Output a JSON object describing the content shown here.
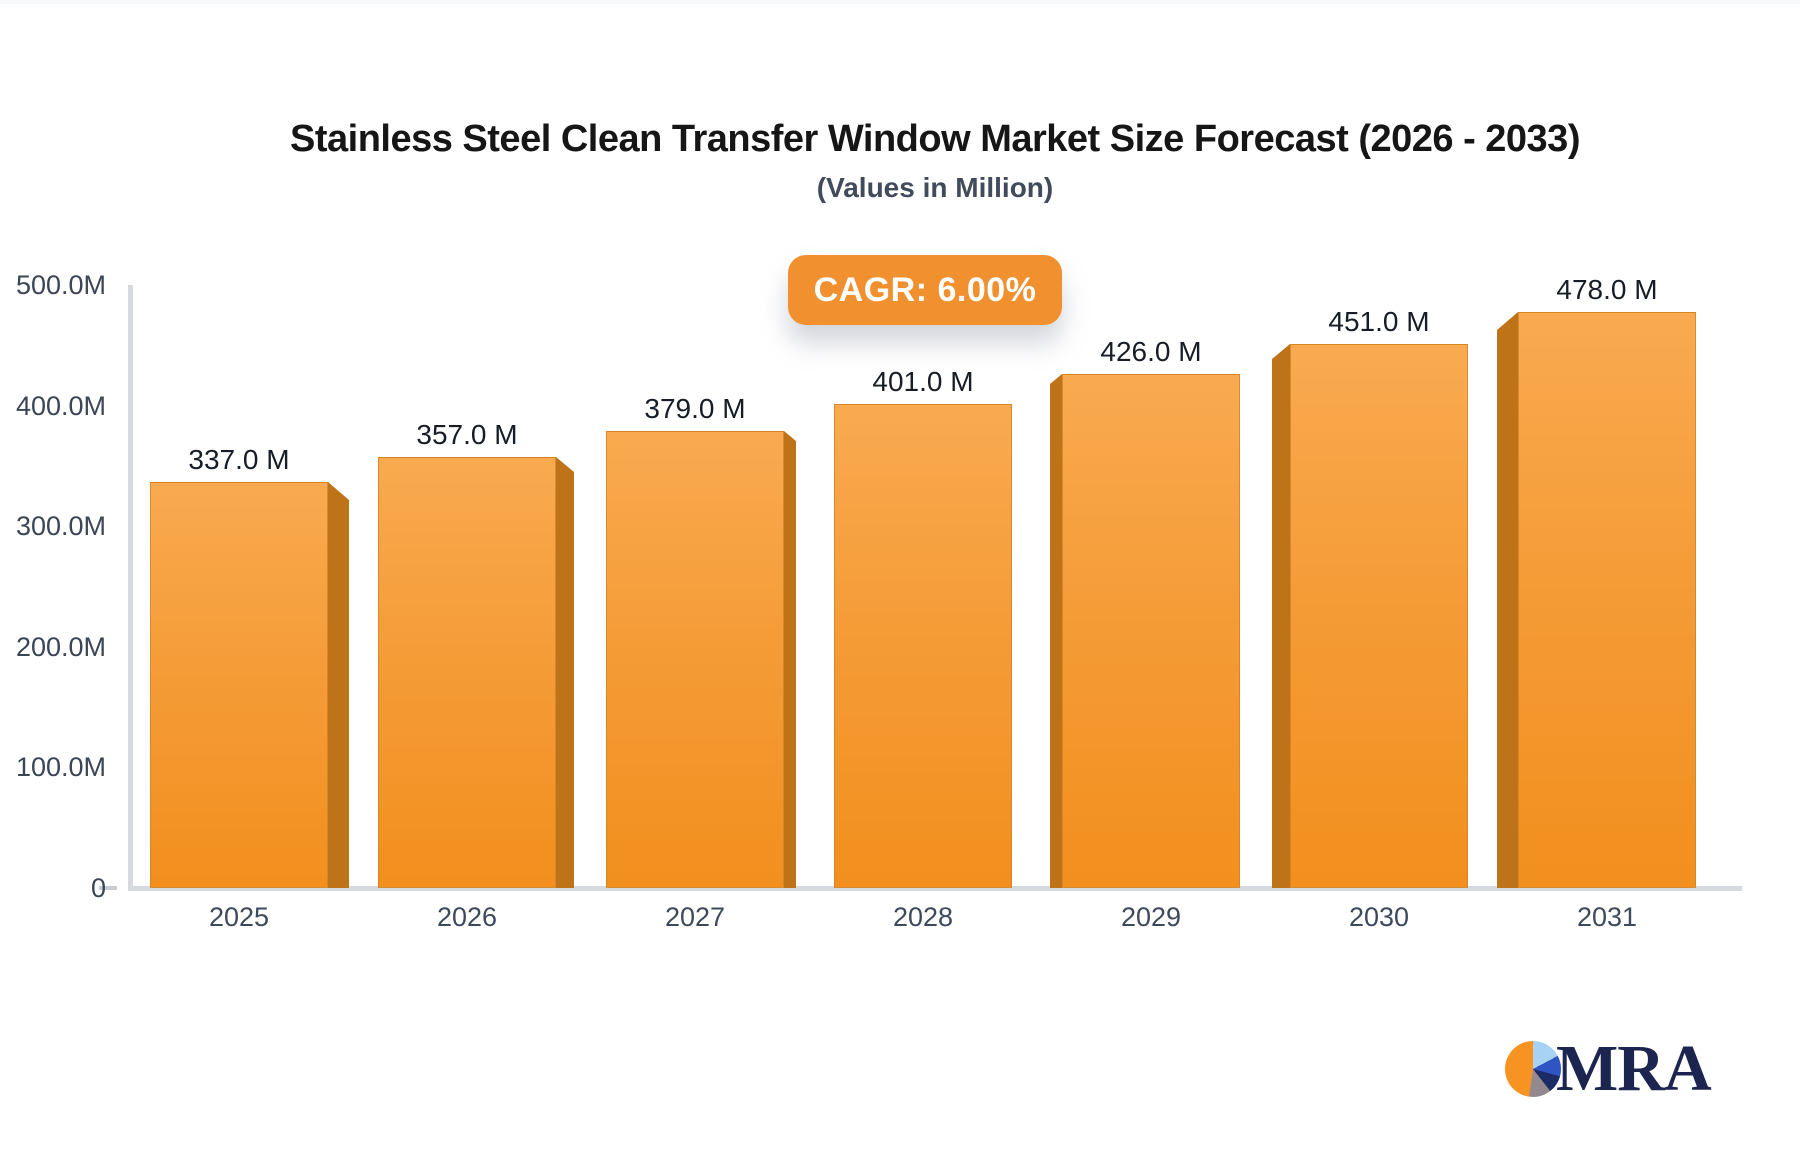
{
  "chart_data": {
    "type": "bar",
    "title": "Stainless Steel Clean Transfer Window Market Size Forecast (2026 - 2033)",
    "subtitle": "(Values in Million)",
    "xlabel": "",
    "ylabel": "",
    "categories": [
      "2025",
      "2026",
      "2027",
      "2028",
      "2029",
      "2030",
      "2031"
    ],
    "values": [
      337,
      357,
      379,
      401,
      426,
      451,
      478
    ],
    "value_labels": [
      "337.0 M",
      "357.0 M",
      "379.0 M",
      "401.0 M",
      "426.0 M",
      "451.0 M",
      "478.0 M"
    ],
    "unit": "Million",
    "ylim": [
      0,
      500
    ],
    "ytick_labels": [
      "500.0M",
      "400.0M",
      "300.0M",
      "200.0M",
      "100.0M",
      "0"
    ],
    "ytick_values": [
      500,
      400,
      300,
      200,
      100,
      0
    ],
    "grid": "off",
    "legend": "none",
    "annotations": [
      "CAGR: 6.00%"
    ],
    "colors": {
      "bar_gradient_top": "#f9aa50",
      "bar_gradient_bottom": "#f28f1e",
      "bar_side_3d": "#bf7319",
      "badge_background": "#f0902e",
      "badge_text": "#ffffff",
      "axis_line": "#d6dade",
      "tick_text": "#3a4656",
      "value_label_text": "#171d26",
      "title_text": "#161616",
      "subtitle_text": "#414b5c"
    }
  },
  "logo": {
    "text": "MRA",
    "icon": "pie-chart-icon",
    "colors": {
      "pie_orange": "#f69322",
      "pie_light_blue": "#a7d2f3",
      "pie_blue": "#2f55c2",
      "pie_navy": "#1c2b66",
      "pie_gray": "#938a90",
      "text_navy": "#1b2550"
    }
  }
}
